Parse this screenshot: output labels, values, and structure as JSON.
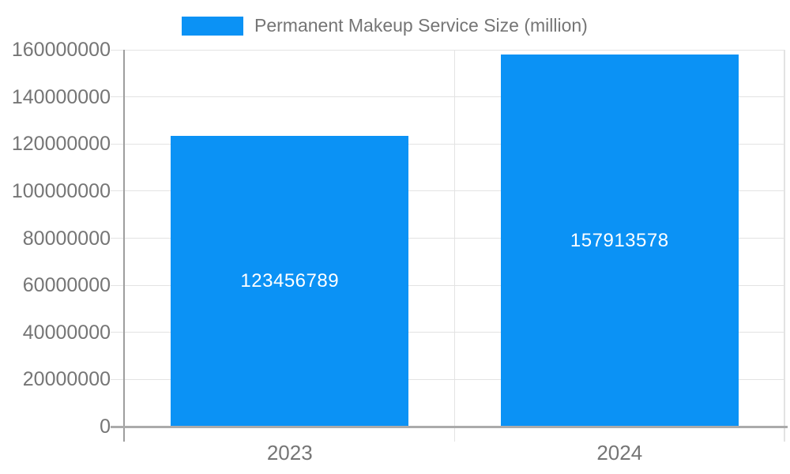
{
  "chart_data": {
    "type": "bar",
    "title": "Permanent Makeup Service Size (million)",
    "legend_position": "top",
    "categories": [
      "2023",
      "2024"
    ],
    "series": [
      {
        "name": "Permanent Makeup Service Size (million)",
        "values": [
          123456789,
          157913578
        ]
      }
    ],
    "bar_value_labels": [
      "123456789",
      "157913578"
    ],
    "xlabel": "",
    "ylabel": "",
    "ylim": [
      0,
      160000000
    ],
    "ytick_step": 20000000,
    "ytick_labels": [
      "0",
      "20000000",
      "40000000",
      "60000000",
      "80000000",
      "100000000",
      "120000000",
      "140000000",
      "160000000"
    ],
    "grid": true,
    "colors": {
      "bar": "#0b92f5",
      "bar_value_text": "#ffffff",
      "axis_text": "#757575",
      "legend_text": "#757575",
      "gridline": "#e3e3e3",
      "axis_line": "#9e9e9e",
      "baseline": "#ababab",
      "background": "#ffffff"
    }
  }
}
